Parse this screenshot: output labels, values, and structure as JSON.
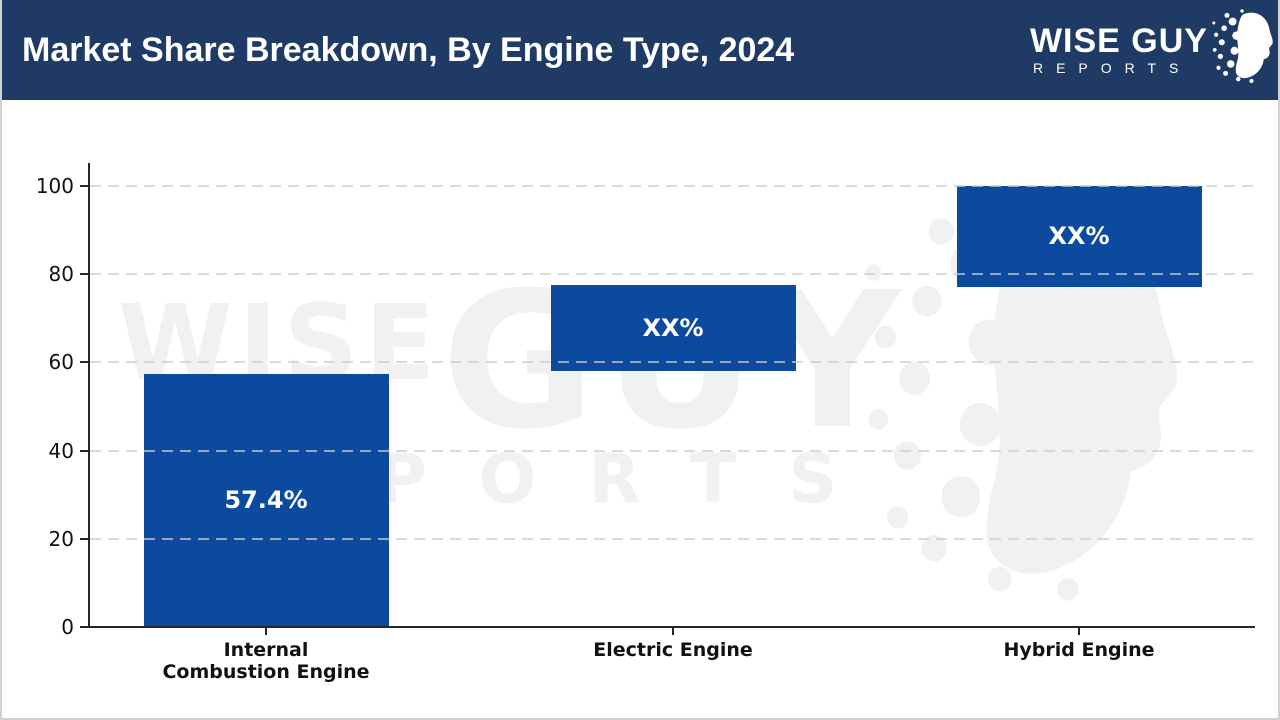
{
  "header": {
    "title": "Market Share Breakdown, By Engine Type, 2024",
    "logo": {
      "wordmark": "WISE GUY",
      "sub": "REPORTS"
    }
  },
  "watermark": {
    "wordmark_small": "WISE",
    "wordmark_large": "GUY",
    "sub": "REPORTS"
  },
  "chart_data": {
    "type": "bar",
    "subtype": "floating-waterfall",
    "title": "Market Share Breakdown, By Engine Type, 2024",
    "categories": [
      "Internal\nCombustion Engine",
      "Electric Engine",
      "Hybrid Engine"
    ],
    "series": [
      {
        "name": "Market share (%)",
        "segments": [
          {
            "category": "Internal Combustion Engine",
            "start": 0,
            "end": 57.4,
            "label": "57.4%"
          },
          {
            "category": "Electric Engine",
            "start": 58,
            "end": 77.6,
            "label": "XX%"
          },
          {
            "category": "Hybrid Engine",
            "start": 77.2,
            "end": 100,
            "label": "XX%"
          }
        ]
      }
    ],
    "ylim": [
      0,
      100
    ],
    "yticks": [
      0,
      20,
      40,
      60,
      80,
      100
    ],
    "xlabel": "",
    "ylabel": "",
    "grid": {
      "horizontal": true,
      "style": "dashed",
      "drawn_over_bars": true
    },
    "legend": "none",
    "colors": {
      "bar": "#0b4a9e",
      "bar_label": "#ffffff",
      "axis": "#262626",
      "tick_label": "#111111",
      "gridline": "#cbcbcb",
      "header_bg": "#203a66",
      "header_text": "#ffffff",
      "watermark": "#f1f1f2"
    }
  }
}
